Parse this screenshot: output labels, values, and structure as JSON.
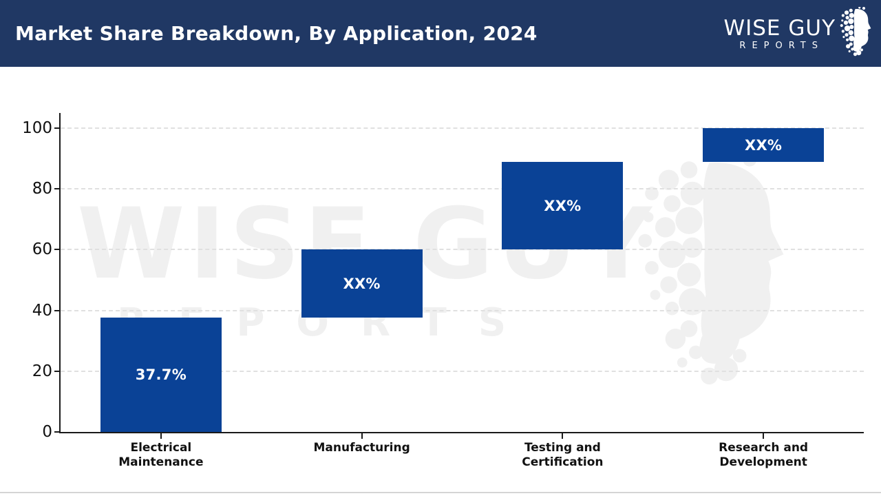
{
  "header": {
    "title": "Market Share Breakdown, By Application, 2024",
    "bg_color": "#203864",
    "logo": {
      "line1": "WISE GUY",
      "line2": "REPORTS"
    }
  },
  "watermark": {
    "line1": "WISE GUY",
    "line2": "REPORTS"
  },
  "chart_data": {
    "type": "bar",
    "subtype": "waterfall",
    "title": "Market Share Breakdown, By Application, 2024",
    "xlabel": "",
    "ylabel": "",
    "categories": [
      "Electrical Maintenance",
      "Manufacturing",
      "Testing and Certification",
      "Research and Development"
    ],
    "category_lines": [
      [
        "Electrical",
        "Maintenance"
      ],
      [
        "Manufacturing"
      ],
      [
        "Testing and",
        "Certification"
      ],
      [
        "Research and",
        "Development"
      ]
    ],
    "segments": [
      {
        "start": 0,
        "end": 37.7,
        "label": "37.7%"
      },
      {
        "start": 37.7,
        "end": 60.0,
        "label": "XX%"
      },
      {
        "start": 60.0,
        "end": 88.8,
        "label": "XX%"
      },
      {
        "start": 88.8,
        "end": 100.0,
        "label": "XX%"
      }
    ],
    "values": [
      37.7,
      22.3,
      28.8,
      11.2
    ],
    "bar_labels": [
      "37.7%",
      "XX%",
      "XX%",
      "XX%"
    ],
    "yticks": [
      0,
      20,
      40,
      60,
      80,
      100
    ],
    "ylim": [
      0,
      104
    ],
    "bar_color": "#0a4296",
    "grid": "horizontal-dashed",
    "legend": "none"
  }
}
